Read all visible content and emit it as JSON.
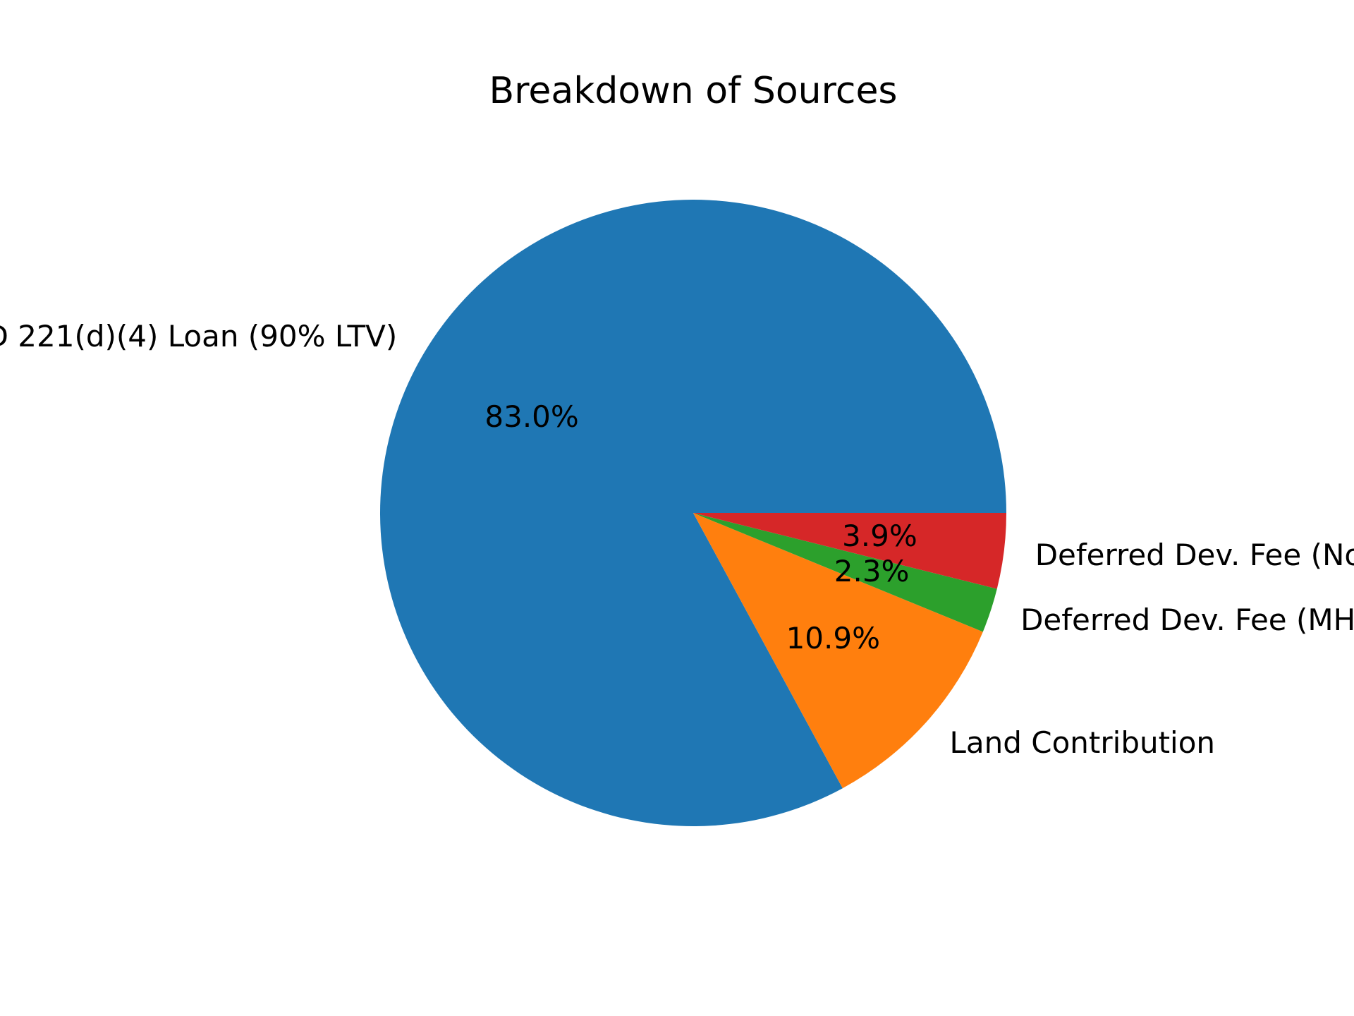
{
  "title": "Breakdown of Sources",
  "chart_data": {
    "type": "pie",
    "title": "Breakdown of Sources",
    "start_angle_deg": 0,
    "direction": "counterclockwise",
    "legend": "none",
    "slices": [
      {
        "label": "D 221(d)(4) Loan (90% LTV)",
        "label_clipped_at_edge": true,
        "value": 83.0,
        "pct_label": "83.0%",
        "color": "#1f77b4"
      },
      {
        "label": "Land Contribution",
        "label_clipped_at_edge": false,
        "value": 10.9,
        "pct_label": "10.9%",
        "color": "#ff7f0e"
      },
      {
        "label": "Deferred Dev. Fee (MH",
        "label_clipped_at_edge": true,
        "value": 2.3,
        "pct_label": "2.3%",
        "color": "#2ca02c"
      },
      {
        "label": "Deferred Dev. Fee (No",
        "label_clipped_at_edge": true,
        "value": 3.9,
        "pct_label": "3.9%",
        "color": "#d62728"
      }
    ],
    "text_color": "#000000",
    "background_color": "#ffffff"
  }
}
